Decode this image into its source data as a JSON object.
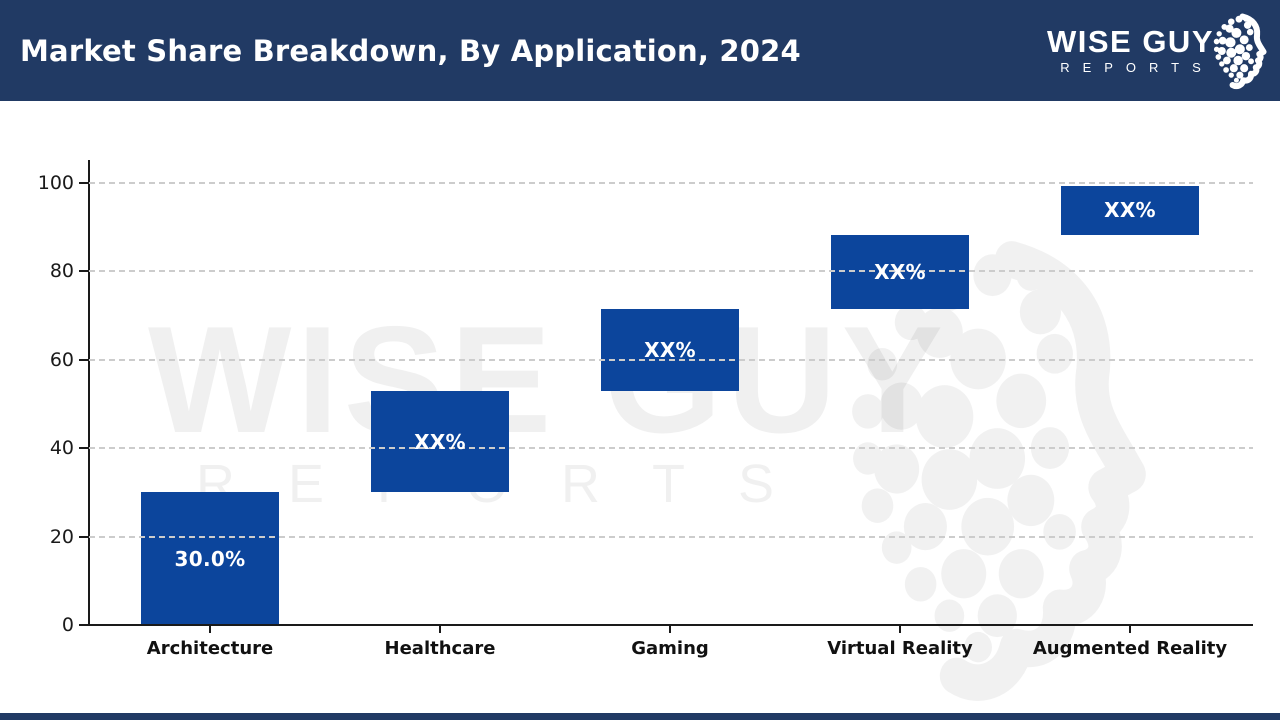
{
  "header": {
    "title": "Market Share Breakdown, By Application, 2024",
    "logo": {
      "line1": "WISE GUY",
      "line2": "REPORTS"
    }
  },
  "watermark": {
    "line1": "WISE GUY",
    "line2": "REPORTS"
  },
  "colors": {
    "header_bg": "#213A64",
    "footer_bg": "#213A64",
    "bar": "#0C459C",
    "grid_line": "#CCCCCC",
    "axis": "#1A1A1A",
    "title_text": "#FFFFFF",
    "bar_label_text": "#FFFFFF",
    "watermark_tint": "#F1F1F1"
  },
  "chart_data": {
    "type": "bar",
    "subtype": "floating-segment-waterfall",
    "title": "Market Share Breakdown, By Application, 2024",
    "categories": [
      "Architecture",
      "Healthcare",
      "Gaming",
      "Virtual Reality",
      "Augmented Reality"
    ],
    "segments": [
      {
        "category": "Architecture",
        "start": 0,
        "end": 30,
        "value": 30.0,
        "label": "30.0%"
      },
      {
        "category": "Healthcare",
        "start": 30,
        "end": 53,
        "value": 23.0,
        "label": "XX%"
      },
      {
        "category": "Gaming",
        "start": 53,
        "end": 71.5,
        "value": 18.5,
        "label": "XX%"
      },
      {
        "category": "Virtual Reality",
        "start": 71.5,
        "end": 88.3,
        "value": 16.8,
        "label": "XX%"
      },
      {
        "category": "Augmented Reality",
        "start": 88.3,
        "end": 99.3,
        "value": 11.0,
        "label": "XX%"
      }
    ],
    "xlabel": "",
    "ylabel": "",
    "yticks": [
      0,
      20,
      40,
      60,
      80,
      100
    ],
    "ylim": [
      0,
      105
    ],
    "grid": "horizontal-dashed",
    "legend": "none",
    "bar_color": "#0C459C"
  }
}
